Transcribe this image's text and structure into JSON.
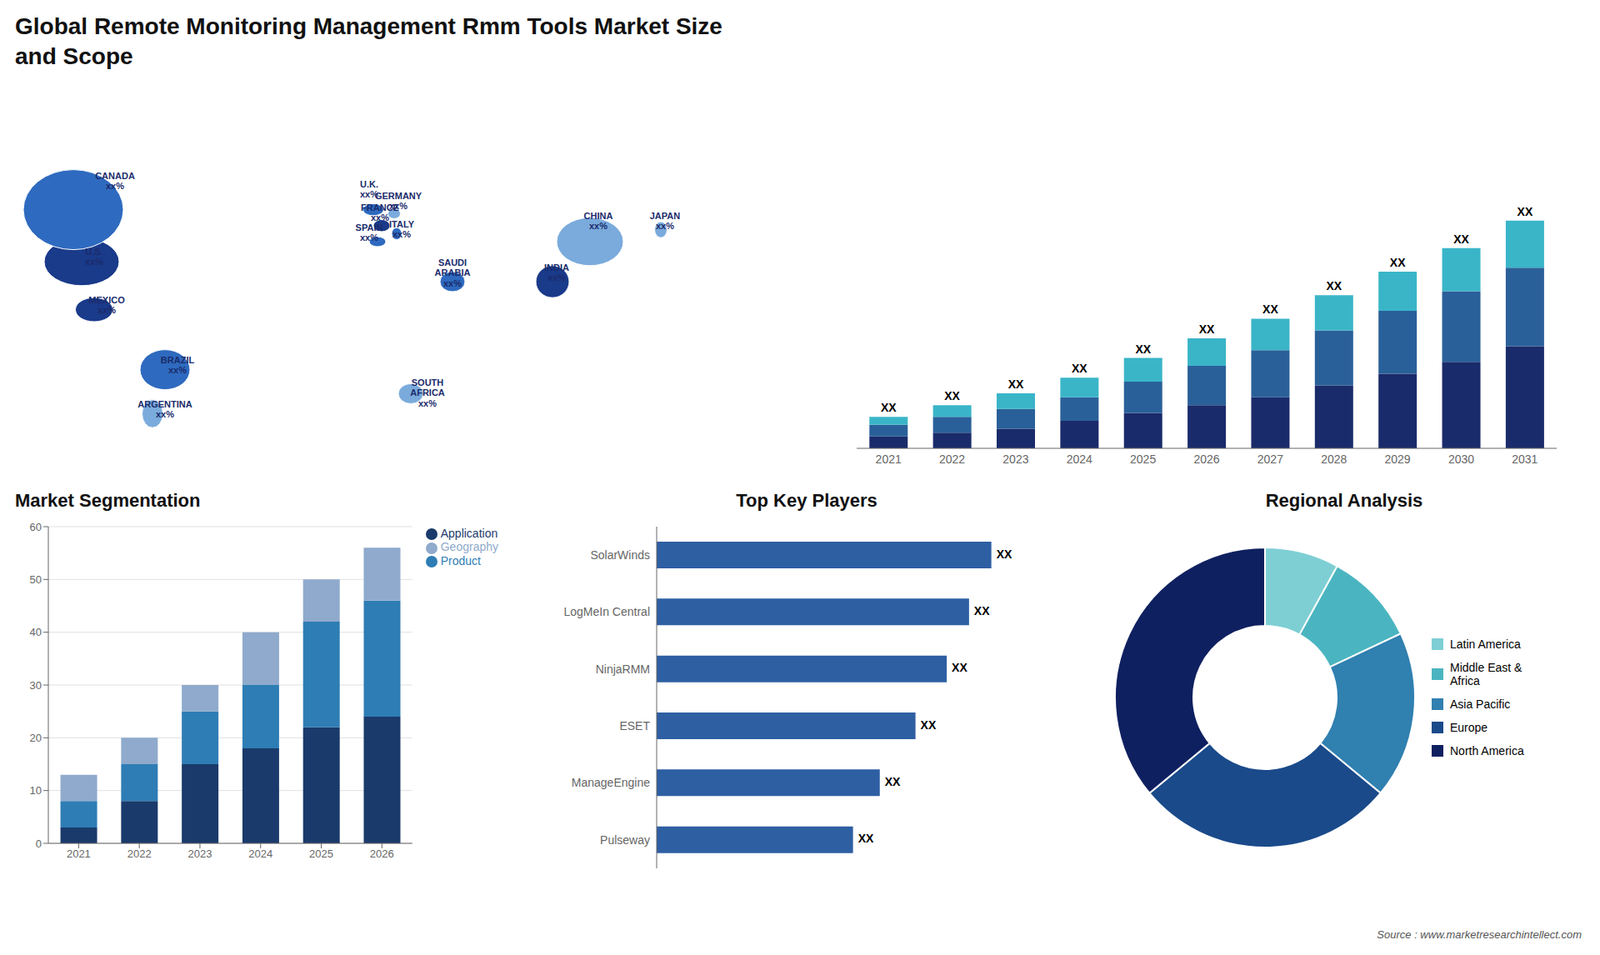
{
  "title": "Global Remote Monitoring Management Rmm Tools Market Size\nand Scope",
  "annotations": [
    "Source : www.marketresearchintellect.com"
  ],
  "chart_data": [
    {
      "type": "map",
      "annotations": [
        "U.S.\nxx%",
        "CANADA\nxx%",
        "MEXICO\nxx%",
        "BRAZIL\nxx%",
        "ARGENTINA\nxx%",
        "U.K.\nxx%",
        "FRANCE\nxx%",
        "SPAIN\nxx%",
        "GERMANY\nxx%",
        "ITALY\nxx%",
        "SAUDI\nARABIA\nxx%",
        "SOUTH\nAFRICA\nxx%",
        "CHINA\nxx%",
        "INDIA\nxx%",
        "JAPAN\nxx%"
      ],
      "colors": [
        "#1a3a8a",
        "#2e6abf",
        "#1a3a8a",
        "#2e6abf",
        "#7aabdc",
        "#2e6abf",
        "#1a3a8a",
        "#2e6abf",
        "#7aabdc",
        "#2e6abf",
        "#2e6abf",
        "#7aabdc",
        "#7aabdc",
        "#1a3a8a",
        "#7aabdc"
      ],
      "color": "#1a2b6b"
    },
    {
      "type": "bar",
      "stacked": true,
      "categories": [
        "2021",
        "2022",
        "2023",
        "2024",
        "2025",
        "2026",
        "2027",
        "2028",
        "2029",
        "2030",
        "2031"
      ],
      "series": [
        {
          "color": "#1a2b6b",
          "values": [
            3,
            4,
            5,
            7,
            9,
            11,
            13,
            16,
            19,
            22,
            26
          ]
        },
        {
          "color": "#2a6099",
          "values": [
            3,
            4,
            5,
            6,
            8,
            10,
            12,
            14,
            16,
            18,
            20
          ]
        },
        {
          "color": "#3ab5c8",
          "values": [
            2,
            3,
            4,
            5,
            6,
            7,
            8,
            9,
            10,
            11,
            12
          ]
        }
      ],
      "ylim": [
        0,
        87
      ],
      "tick_labels": "x",
      "grid": false,
      "annotations": [
        "XX",
        "XX",
        "XX",
        "XX",
        "XX",
        "XX",
        "XX",
        "XX",
        "XX",
        "XX",
        "XX"
      ]
    },
    {
      "type": "bar",
      "stacked": true,
      "title": "Market Segmentation",
      "categories": [
        "2021",
        "2022",
        "2023",
        "2024",
        "2025",
        "2026"
      ],
      "series": [
        {
          "name": "Application",
          "color": "#1a3a6b",
          "values": [
            3,
            8,
            15,
            18,
            22,
            24
          ]
        },
        {
          "name": "Product",
          "color": "#2e7db5",
          "values": [
            5,
            7,
            10,
            12,
            20,
            22
          ]
        },
        {
          "name": "Geography",
          "color": "#8faacc",
          "values": [
            5,
            5,
            5,
            10,
            8,
            10
          ]
        }
      ],
      "ylim": [
        0,
        60
      ],
      "yticks": [
        0,
        10,
        20,
        30,
        40,
        50,
        60
      ],
      "grid": true,
      "legend": "right"
    },
    {
      "type": "bar",
      "orientation": "horizontal",
      "title": "Top Key Players",
      "categories": [
        "SolarWinds",
        "LogMeIn Central",
        "NinjaRMM",
        "ESET",
        "ManageEngine",
        "Pulseway"
      ],
      "values": [
        75,
        70,
        65,
        58,
        50,
        44
      ],
      "color": "#2e5fa3",
      "xlim": [
        0,
        91.5
      ],
      "tick_labels": "y",
      "grid": false,
      "annotations": [
        "XX",
        "XX",
        "XX",
        "XX",
        "XX",
        "XX"
      ]
    },
    {
      "type": "pie",
      "title": "Regional Analysis",
      "categories": [
        "Latin America",
        "Middle East &\nAfrica",
        "Asia Pacific",
        "Europe",
        "North America"
      ],
      "values": [
        8,
        10,
        18,
        28,
        36
      ],
      "colors": [
        "#7ecfd4",
        "#4ab5c0",
        "#3080b0",
        "#1a4a8a",
        "#0f2060"
      ],
      "legend": "right"
    }
  ]
}
